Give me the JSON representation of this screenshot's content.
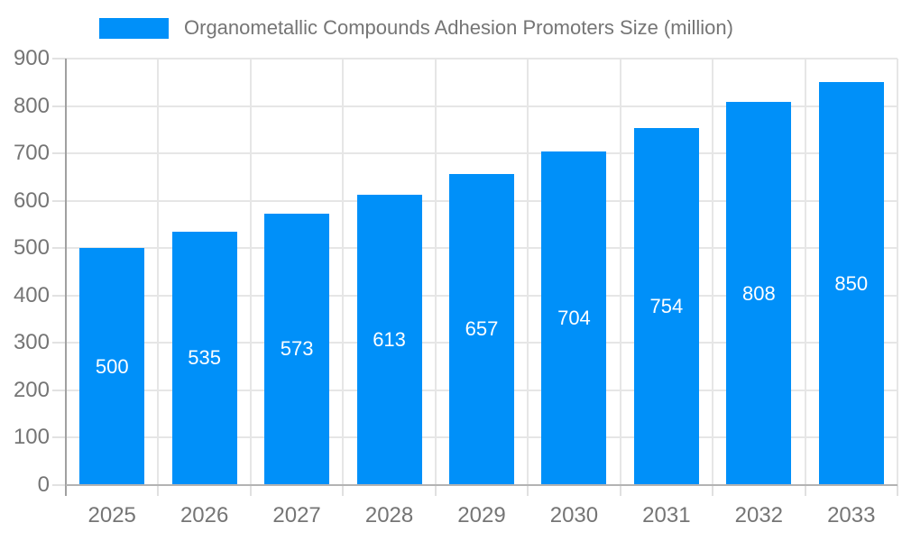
{
  "chart_data": {
    "type": "bar",
    "title": "Organometallic Compounds Adhesion Promoters Size (million)",
    "categories": [
      "2025",
      "2026",
      "2027",
      "2028",
      "2029",
      "2030",
      "2031",
      "2032",
      "2033"
    ],
    "values": [
      500,
      535,
      573,
      613,
      657,
      704,
      754,
      808,
      850
    ],
    "bar_labels": [
      "500",
      "535",
      "573",
      "613",
      "657",
      "704",
      "754",
      "808",
      "850"
    ],
    "xlabel": "",
    "ylabel": "",
    "ylim": [
      0,
      900
    ],
    "ytick_step": 100,
    "yticks": [
      "0",
      "100",
      "200",
      "300",
      "400",
      "500",
      "600",
      "700",
      "800",
      "900"
    ],
    "grid": true,
    "legend_position": "top",
    "colors": {
      "bar": "#0090f9",
      "bar_label": "#ffffff",
      "axis_text": "#757575",
      "title_text": "#757575",
      "gridline": "#e6e6e6",
      "y_axis_line": "#a0a0a0",
      "x_axis_line": "#b3b3b3"
    }
  }
}
